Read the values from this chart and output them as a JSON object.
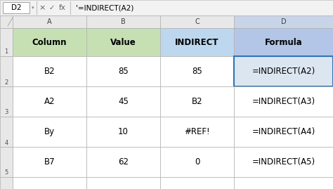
{
  "title_bar": {
    "cell_ref": "D2",
    "formula": "'=INDIRECT(A2)"
  },
  "col_headers": [
    "A",
    "B",
    "C",
    "D"
  ],
  "headers": [
    "Column",
    "Value",
    "INDIRECT",
    "Formula"
  ],
  "header_bg_AB": "#c6e0b4",
  "header_bg_C": "#bdd7ee",
  "header_bg_D": "#b4c6e7",
  "col_header_bg_D": "#c8d4e8",
  "data_rows": [
    [
      "B2",
      "85",
      "85",
      "=INDIRECT(A2)"
    ],
    [
      "A2",
      "45",
      "B2",
      "=INDIRECT(A3)"
    ],
    [
      "By",
      "10",
      "#REF!",
      "=INDIRECT(A4)"
    ],
    [
      "B7",
      "62",
      "0",
      "=INDIRECT(A5)"
    ]
  ],
  "cell_bg_D_selected": "#dce6f1",
  "grid_color": "#b0b0b0",
  "row_num_bg": "#e8e8e8",
  "formula_bar_bg": "#f2f2f2",
  "cell_ref_box_bg": "#ffffff",
  "main_bg": "#f0f0f0"
}
